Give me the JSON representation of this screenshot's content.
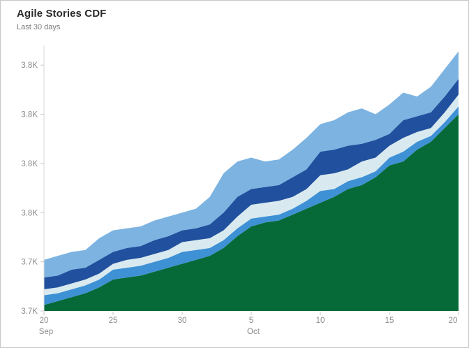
{
  "card": {
    "title": "Agile Stories CDF",
    "subtitle": "Last 30 days"
  },
  "chart_data": {
    "type": "area",
    "stacked": true,
    "values_are_cumulative": true,
    "title": "Agile Stories CDF",
    "subtitle": "Last 30 days",
    "x_start_label": "Sep 20",
    "x_end_label": "Oct 20",
    "n_points": 31,
    "baseline": 3700,
    "ylim": [
      3700,
      3835
    ],
    "grid": false,
    "legend": "none",
    "axis_color": "#d8d8d8",
    "tick_color": "#c9c9c9",
    "tick_label_color": "#8b8b8b",
    "y_ticks": [
      {
        "value": 3700,
        "label": "3.7K"
      },
      {
        "value": 3725,
        "label": "3.7K"
      },
      {
        "value": 3750,
        "label": "3.8K"
      },
      {
        "value": 3775,
        "label": "3.8K"
      },
      {
        "value": 3800,
        "label": "3.8K"
      },
      {
        "value": 3825,
        "label": "3.8K"
      }
    ],
    "x_ticks": [
      {
        "index": 0,
        "label": "20",
        "sublabel": "Sep"
      },
      {
        "index": 5,
        "label": "25",
        "sublabel": ""
      },
      {
        "index": 10,
        "label": "30",
        "sublabel": ""
      },
      {
        "index": 15,
        "label": "5",
        "sublabel": "Oct"
      },
      {
        "index": 20,
        "label": "10",
        "sublabel": ""
      },
      {
        "index": 25,
        "label": "15",
        "sublabel": ""
      },
      {
        "index": 30,
        "label": "20",
        "sublabel": ""
      }
    ],
    "series": [
      {
        "name": "green-band",
        "color": "#066a38",
        "cumulative": [
          3703,
          3705,
          3707,
          3709,
          3712,
          3716,
          3717,
          3718,
          3720,
          3722,
          3724,
          3726,
          3728,
          3732,
          3738,
          3743,
          3745,
          3746,
          3749,
          3752,
          3755,
          3758,
          3762,
          3764,
          3768,
          3774,
          3776,
          3782,
          3786,
          3793,
          3800
        ]
      },
      {
        "name": "medium-blue-band",
        "color": "#3e91d5",
        "cumulative": [
          3708,
          3709,
          3711,
          3713,
          3716,
          3721,
          3722,
          3723,
          3725,
          3727,
          3730,
          3731,
          3732,
          3736,
          3742,
          3747,
          3748,
          3749,
          3752,
          3756,
          3761,
          3762,
          3766,
          3768,
          3771,
          3778,
          3781,
          3786,
          3789,
          3796,
          3804
        ]
      },
      {
        "name": "pale-blue-band",
        "color": "#d8eaef",
        "cumulative": [
          3711,
          3712,
          3714,
          3716,
          3719,
          3724,
          3726,
          3727,
          3729,
          3731,
          3735,
          3736,
          3737,
          3741,
          3748,
          3754,
          3755,
          3756,
          3758,
          3762,
          3769,
          3770,
          3772,
          3776,
          3778,
          3784,
          3788,
          3791,
          3793,
          3801,
          3810
        ]
      },
      {
        "name": "navy-band",
        "color": "#21509e",
        "cumulative": [
          3717,
          3718,
          3721,
          3722,
          3726,
          3730,
          3732,
          3733,
          3736,
          3738,
          3741,
          3742,
          3744,
          3750,
          3758,
          3762,
          3763,
          3764,
          3768,
          3772,
          3781,
          3782,
          3784,
          3785,
          3787,
          3790,
          3797,
          3799,
          3801,
          3809,
          3818
        ]
      },
      {
        "name": "light-blue-band",
        "color": "#7cb3e1",
        "cumulative": [
          3726,
          3728,
          3730,
          3731,
          3737,
          3741,
          3742,
          3743,
          3746,
          3748,
          3750,
          3752,
          3758,
          3770,
          3776,
          3778,
          3776,
          3777,
          3782,
          3788,
          3795,
          3797,
          3801,
          3803,
          3800,
          3805,
          3811,
          3809,
          3814,
          3823,
          3832
        ]
      }
    ]
  }
}
